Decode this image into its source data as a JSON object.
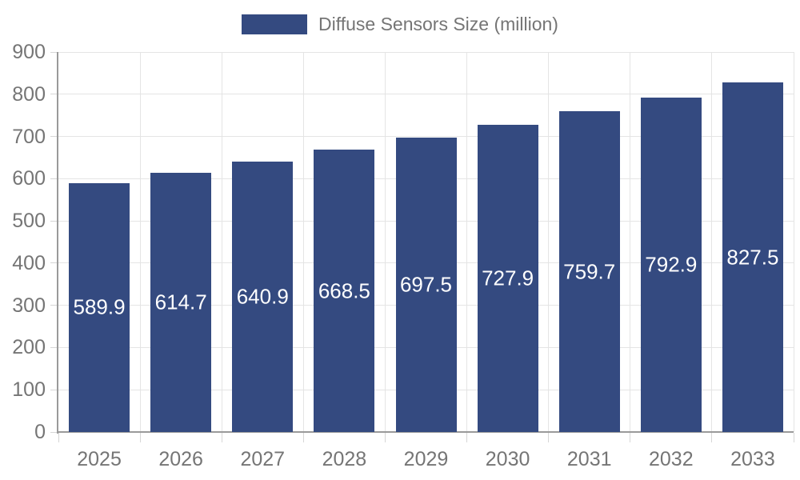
{
  "chart_data": {
    "type": "bar",
    "title": "Diffuse Sensors Size (million)",
    "legend": [
      "Diffuse Sensors Size (million)"
    ],
    "legend_position": "top",
    "categories": [
      "2025",
      "2026",
      "2027",
      "2028",
      "2029",
      "2030",
      "2031",
      "2032",
      "2033"
    ],
    "values": [
      589.9,
      614.7,
      640.9,
      668.5,
      697.5,
      727.9,
      759.7,
      792.9,
      827.5
    ],
    "xlabel": "",
    "ylabel": "",
    "ylim": [
      0,
      900
    ],
    "ytick_step": 100,
    "yticks": [
      0,
      100,
      200,
      300,
      400,
      500,
      600,
      700,
      800,
      900
    ],
    "grid": true,
    "value_labels_inside_bars": true,
    "colors": {
      "bar": "#344a80",
      "value_label": "#ffffff",
      "grid": "#e4e4e4",
      "tick": "#d6d6d6",
      "axis": "#9a9a9a",
      "text": "#757575",
      "background": "#ffffff"
    }
  }
}
